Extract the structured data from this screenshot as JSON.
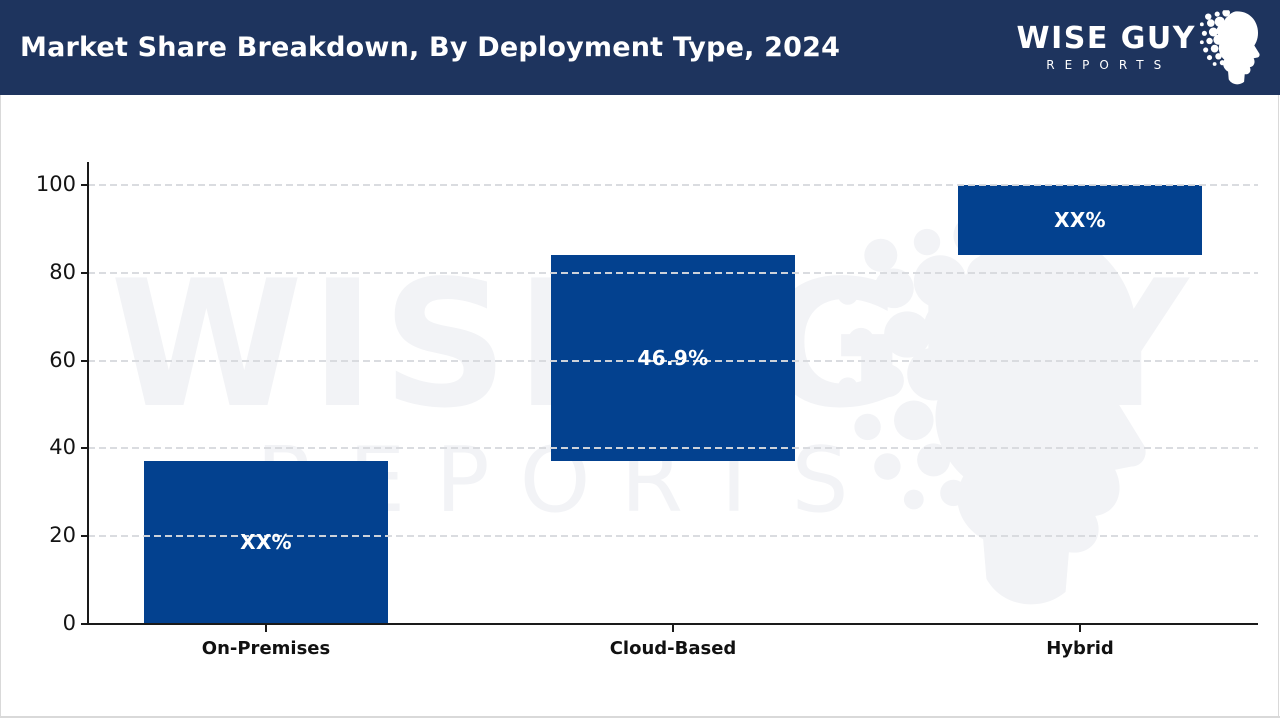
{
  "header": {
    "title": "Market Share Breakdown, By Deployment Type, 2024",
    "logo": {
      "brand_line1": "WISE GUY",
      "brand_line2": "REPORTS"
    }
  },
  "watermark": {
    "line1": "WISE GUY",
    "line2": "REPORTS"
  },
  "chart_data": {
    "type": "bar",
    "variant": "waterfall",
    "title": "Market Share Breakdown, By Deployment Type, 2024",
    "categories": [
      "On-Premises",
      "Cloud-Based",
      "Hybrid"
    ],
    "segments": [
      {
        "category": "On-Premises",
        "start": 0,
        "end": 37.2,
        "height": 37.2,
        "label": "XX%"
      },
      {
        "category": "Cloud-Based",
        "start": 37.2,
        "end": 84.1,
        "height": 46.9,
        "label": "46.9%"
      },
      {
        "category": "Hybrid",
        "start": 84.1,
        "end": 100,
        "height": 15.9,
        "label": "XX%"
      }
    ],
    "xlabel": "",
    "ylabel": "",
    "ylim": [
      0,
      100
    ],
    "yticks": [
      0,
      20,
      40,
      60,
      80,
      100
    ],
    "grid": "horizontal-dashed",
    "legend": "none"
  },
  "colors": {
    "header_bg": "#1e345e",
    "bar": "#03418f",
    "bar_label": "#ffffff",
    "grid": "#d8dade",
    "axis": "#1a1a1a",
    "watermark": "#f2f3f6",
    "border": "#d9d9d9",
    "title_text": "#ffffff"
  }
}
